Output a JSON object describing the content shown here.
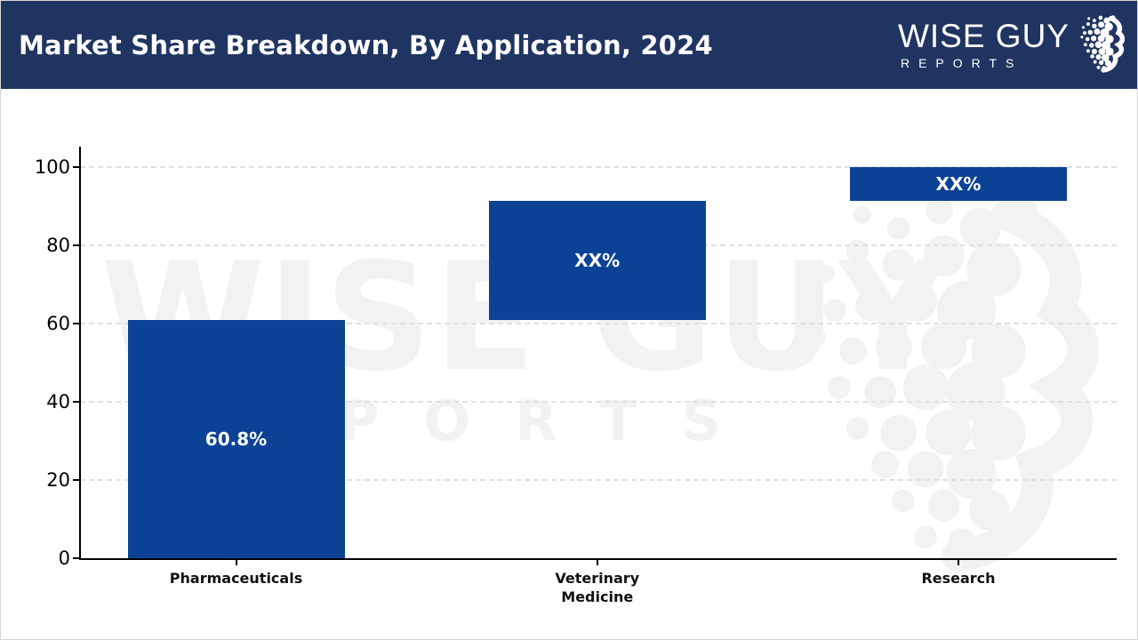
{
  "header": {
    "title": "Market Share Breakdown, By Application, 2024",
    "logo": {
      "wordmark": "WISE GUY",
      "subtext": "REPORTS"
    }
  },
  "watermark": {
    "line1": "WISE GUY",
    "line2": "REPORTS"
  },
  "chart_data": {
    "type": "bar",
    "variant": "waterfall",
    "title": "Market Share Breakdown, By Application, 2024",
    "categories": [
      "Pharmaceuticals",
      "Veterinary\nMedicine",
      "Research"
    ],
    "segments": [
      {
        "name": "Pharmaceuticals",
        "start": 0,
        "end": 60.8,
        "value": 60.8,
        "value_label": "60.8%"
      },
      {
        "name": "Veterinary Medicine",
        "start": 60.8,
        "end": 91.2,
        "value": 30.4,
        "value_label": "XX%"
      },
      {
        "name": "Research",
        "start": 91.2,
        "end": 100,
        "value": 8.8,
        "value_label": "XX%"
      }
    ],
    "yticks": [
      0,
      20,
      40,
      60,
      80,
      100
    ],
    "ylim": [
      0,
      105.5
    ],
    "xlabel": "",
    "ylabel": "",
    "grid": "horizontal-dashed",
    "legend": "none",
    "colors": {
      "bar": "#0c4296",
      "header_bg": "#203462",
      "grid_line": "#e0e0e0",
      "axis": "#000000",
      "bar_label": "#ffffff",
      "watermark": "#f2f2f2"
    }
  }
}
